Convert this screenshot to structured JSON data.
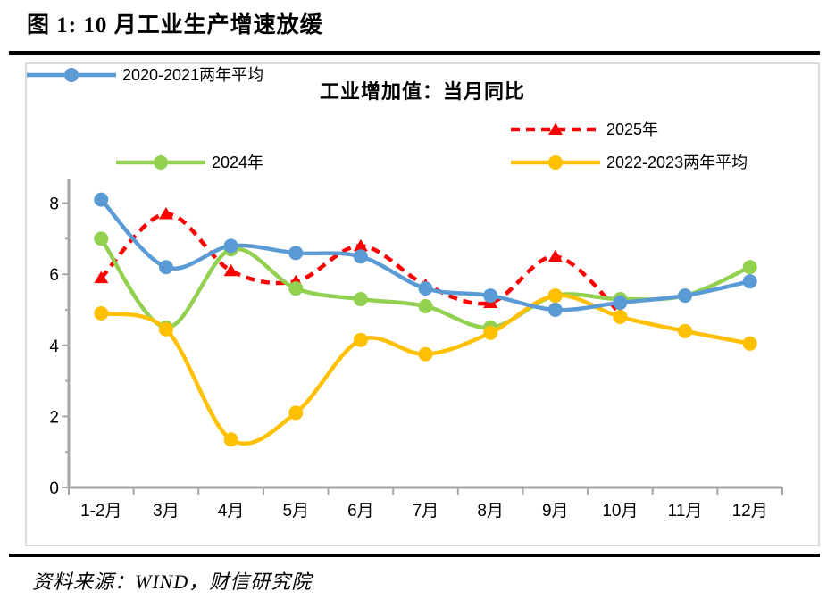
{
  "header": {
    "title": "图 1: 10 月工业生产增速放缓"
  },
  "footer": {
    "source": "资料来源：WIND，财信研究院"
  },
  "chart": {
    "title": "工业增加值：当月同比"
  },
  "chart_data": {
    "type": "line",
    "title": "工业增加值：当月同比",
    "categories": [
      "1-2月",
      "3月",
      "4月",
      "5月",
      "6月",
      "7月",
      "8月",
      "9月",
      "10月",
      "11月",
      "12月"
    ],
    "series": [
      {
        "name": "2025年",
        "color": "#FF0000",
        "style": "dashed",
        "marker": "triangle",
        "values": [
          5.9,
          7.7,
          6.1,
          5.8,
          6.8,
          5.7,
          5.2,
          6.5,
          4.9,
          null,
          null
        ]
      },
      {
        "name": "2024年",
        "color": "#92D050",
        "style": "solid",
        "marker": "circle",
        "values": [
          7.0,
          4.5,
          6.7,
          5.6,
          5.3,
          5.1,
          4.5,
          5.4,
          5.3,
          5.4,
          6.2
        ]
      },
      {
        "name": "2022-2023两年平均",
        "color": "#FFC000",
        "style": "solid",
        "marker": "circle",
        "values": [
          4.9,
          4.45,
          1.35,
          2.1,
          4.15,
          3.75,
          4.35,
          5.4,
          4.8,
          4.4,
          4.05
        ]
      },
      {
        "name": "2020-2021两年平均",
        "color": "#5B9BD5",
        "style": "solid",
        "marker": "circle",
        "values": [
          8.1,
          6.2,
          6.8,
          6.6,
          6.5,
          5.6,
          5.4,
          5.0,
          5.2,
          5.4,
          5.8
        ]
      }
    ],
    "ylim": [
      0,
      8
    ],
    "yticks": [
      0,
      2,
      4,
      6,
      8
    ],
    "ytick_labels": [
      "0",
      "2",
      "4",
      "6",
      "8"
    ],
    "xlabel": "",
    "ylabel": "",
    "grid": false,
    "legend_position": "top-two-columns",
    "axis_color": "#A6A6A6",
    "smooth_lines": true
  }
}
